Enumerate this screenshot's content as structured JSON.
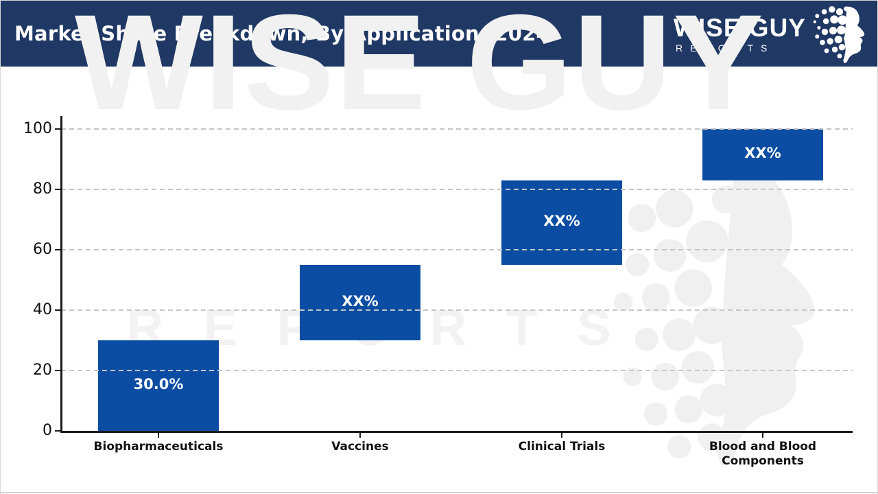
{
  "header": {
    "title": "Market Share Breakdown, By Application, 2024",
    "logo": {
      "line1": "WISE GUY",
      "line2": "REPORTS"
    }
  },
  "watermark": {
    "line1": "WISE GUY",
    "line2": "REPORTS"
  },
  "colors": {
    "header_bg": "#1f3864",
    "bar": "#0b4da2",
    "grid": "#c6c6c6",
    "axis": "#1a1a1a",
    "watermark": "#f1f1f1"
  },
  "chart_data": {
    "type": "bar",
    "variant": "waterfall",
    "title": "Market Share Breakdown, By Application, 2024",
    "categories": [
      "Biopharmaceuticals",
      "Vaccines",
      "Clinical Trials",
      "Blood and Blood Components"
    ],
    "segments": [
      {
        "category": "Biopharmaceuticals",
        "start": 0,
        "end": 30,
        "label": "30.0%"
      },
      {
        "category": "Vaccines",
        "start": 30,
        "end": 55,
        "label": "XX%"
      },
      {
        "category": "Clinical Trials",
        "start": 55,
        "end": 83,
        "label": "XX%"
      },
      {
        "category": "Blood and Blood Components",
        "start": 83,
        "end": 100,
        "label": "XX%"
      }
    ],
    "ylim": [
      0,
      100
    ],
    "yticks": [
      0,
      20,
      40,
      60,
      80,
      100
    ],
    "xlabel": "",
    "ylabel": "",
    "grid": "dashed-horizontal",
    "legend": "none",
    "bar_color": "#0b4da2",
    "label_color": "#ffffff"
  }
}
